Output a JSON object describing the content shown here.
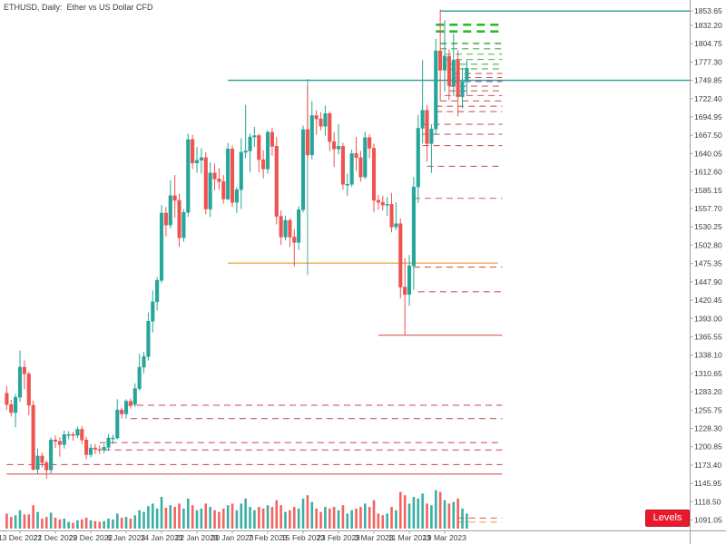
{
  "header": {
    "symbol_label": "ETHUSD, Daily:  Ether vs US Dollar CFD"
  },
  "levels_button": {
    "label": "Levels"
  },
  "colors": {
    "up": "#26a69a",
    "down": "#ef5350",
    "red_level": "#cd5c5c",
    "green_bold": "#2eb82e",
    "green_level": "#4caf50",
    "purple_level": "#a64ca6",
    "orange_level": "#efa94a",
    "teal_line": "#2a9d97",
    "axis_text": "#3c3c3c",
    "axis_line": "#a0a0a0",
    "button_red": "#e8192c"
  },
  "chart_data": {
    "type": "candlestick",
    "title": "ETHUSD, Daily: Ether vs US Dollar CFD",
    "xlabel": "",
    "ylabel": "",
    "price_axis": {
      "min": 1085,
      "max": 1862,
      "labels": [
        "1853.65",
        "1832.20",
        "1804.75",
        "1777.30",
        "1749.85",
        "1722.40",
        "1694.95",
        "1667.50",
        "1640.05",
        "1612.60",
        "1585.15",
        "1557.70",
        "1530.25",
        "1502.80",
        "1475.35",
        "1447.90",
        "1420.45",
        "1393.00",
        "1365.55",
        "1338.10",
        "1310.65",
        "1283.20",
        "1255.75",
        "1228.30",
        "1200.85",
        "1173.40",
        "1145.95",
        "1118.50",
        "1091.05"
      ]
    },
    "time_axis": {
      "start_date": "10 Dec 2022",
      "ticks": [
        {
          "label": "13 Dec 2022",
          "day": 3
        },
        {
          "label": "21 Dec 2022",
          "day": 11
        },
        {
          "label": "29 Dec 2022",
          "day": 19
        },
        {
          "label": "6 Jan 2023",
          "day": 27
        },
        {
          "label": "14 Jan 2023",
          "day": 35
        },
        {
          "label": "22 Jan 2023",
          "day": 43
        },
        {
          "label": "30 Jan 2023",
          "day": 51
        },
        {
          "label": "7 Feb 2023",
          "day": 59
        },
        {
          "label": "15 Feb 2023",
          "day": 67
        },
        {
          "label": "23 Feb 2023",
          "day": 75
        },
        {
          "label": "3 Mar 2023",
          "day": 83
        },
        {
          "label": "11 Mar 2023",
          "day": 91
        },
        {
          "label": "19 Mar 2023",
          "day": 99
        }
      ]
    },
    "candles": [
      [
        1281,
        1292,
        1256,
        1264
      ],
      [
        1264,
        1271,
        1246,
        1252
      ],
      [
        1252,
        1280,
        1230,
        1275
      ],
      [
        1275,
        1345,
        1268,
        1320
      ],
      [
        1320,
        1330,
        1287,
        1310
      ],
      [
        1310,
        1313,
        1248,
        1263
      ],
      [
        1263,
        1270,
        1165,
        1167
      ],
      [
        1167,
        1198,
        1160,
        1187
      ],
      [
        1187,
        1192,
        1170,
        1177
      ],
      [
        1177,
        1180,
        1153,
        1166
      ],
      [
        1166,
        1215,
        1161,
        1211
      ],
      [
        1211,
        1218,
        1199,
        1209
      ],
      [
        1209,
        1215,
        1186,
        1204
      ],
      [
        1204,
        1225,
        1198,
        1219
      ],
      [
        1219,
        1224,
        1212,
        1219
      ],
      [
        1219,
        1223,
        1210,
        1218
      ],
      [
        1218,
        1231,
        1214,
        1227
      ],
      [
        1227,
        1232,
        1205,
        1211
      ],
      [
        1211,
        1216,
        1182,
        1189
      ],
      [
        1189,
        1205,
        1185,
        1199
      ],
      [
        1199,
        1205,
        1190,
        1197
      ],
      [
        1197,
        1203,
        1190,
        1196
      ],
      [
        1196,
        1205,
        1191,
        1200
      ],
      [
        1200,
        1220,
        1195,
        1214
      ],
      [
        1214,
        1219,
        1205,
        1214
      ],
      [
        1214,
        1272,
        1212,
        1256
      ],
      [
        1256,
        1259,
        1243,
        1250
      ],
      [
        1250,
        1272,
        1243,
        1269
      ],
      [
        1269,
        1273,
        1258,
        1264
      ],
      [
        1264,
        1296,
        1260,
        1288
      ],
      [
        1288,
        1340,
        1285,
        1320
      ],
      [
        1320,
        1343,
        1311,
        1336
      ],
      [
        1336,
        1402,
        1330,
        1389
      ],
      [
        1389,
        1435,
        1372,
        1418
      ],
      [
        1418,
        1455,
        1405,
        1450
      ],
      [
        1450,
        1563,
        1446,
        1551
      ],
      [
        1551,
        1560,
        1516,
        1533
      ],
      [
        1533,
        1600,
        1528,
        1577
      ],
      [
        1577,
        1608,
        1544,
        1570
      ],
      [
        1570,
        1580,
        1500,
        1514
      ],
      [
        1514,
        1557,
        1508,
        1552
      ],
      [
        1552,
        1670,
        1545,
        1661
      ],
      [
        1661,
        1668,
        1617,
        1626
      ],
      [
        1626,
        1650,
        1611,
        1630
      ],
      [
        1630,
        1648,
        1610,
        1634
      ],
      [
        1634,
        1642,
        1549,
        1557
      ],
      [
        1557,
        1627,
        1545,
        1611
      ],
      [
        1611,
        1625,
        1585,
        1602
      ],
      [
        1602,
        1618,
        1586,
        1598
      ],
      [
        1598,
        1608,
        1565,
        1572
      ],
      [
        1572,
        1656,
        1570,
        1647
      ],
      [
        1647,
        1652,
        1560,
        1567
      ],
      [
        1567,
        1590,
        1551,
        1586
      ],
      [
        1586,
        1663,
        1557,
        1642
      ],
      [
        1642,
        1713,
        1633,
        1644
      ],
      [
        1644,
        1670,
        1612,
        1665
      ],
      [
        1665,
        1680,
        1650,
        1667
      ],
      [
        1667,
        1670,
        1612,
        1631
      ],
      [
        1631,
        1645,
        1603,
        1617
      ],
      [
        1617,
        1675,
        1610,
        1672
      ],
      [
        1672,
        1679,
        1637,
        1651
      ],
      [
        1651,
        1665,
        1534,
        1546
      ],
      [
        1546,
        1555,
        1503,
        1515
      ],
      [
        1515,
        1547,
        1510,
        1540
      ],
      [
        1540,
        1543,
        1500,
        1515
      ],
      [
        1515,
        1527,
        1471,
        1507
      ],
      [
        1507,
        1561,
        1496,
        1556
      ],
      [
        1556,
        1682,
        1552,
        1676
      ],
      [
        1676,
        1743,
        1633,
        1638
      ],
      [
        1638,
        1719,
        1631,
        1697
      ],
      [
        1697,
        1705,
        1668,
        1692
      ],
      [
        1692,
        1702,
        1675,
        1681
      ],
      [
        1681,
        1712,
        1667,
        1700
      ],
      [
        1700,
        1703,
        1644,
        1658
      ],
      [
        1658,
        1672,
        1620,
        1647
      ],
      [
        1647,
        1684,
        1639,
        1651
      ],
      [
        1651,
        1656,
        1586,
        1594
      ],
      [
        1594,
        1610,
        1577,
        1594
      ],
      [
        1594,
        1646,
        1590,
        1640
      ],
      [
        1640,
        1665,
        1614,
        1634
      ],
      [
        1634,
        1644,
        1598,
        1605
      ],
      [
        1605,
        1673,
        1602,
        1664
      ],
      [
        1664,
        1669,
        1633,
        1648
      ],
      [
        1648,
        1655,
        1552,
        1570
      ],
      [
        1570,
        1578,
        1556,
        1567
      ],
      [
        1567,
        1577,
        1555,
        1563
      ],
      [
        1563,
        1575,
        1547,
        1564
      ],
      [
        1564,
        1581,
        1522,
        1530
      ],
      [
        1530,
        1567,
        1525,
        1535
      ],
      [
        1535,
        1543,
        1423,
        1440
      ],
      [
        1440,
        1483,
        1368,
        1429
      ],
      [
        1429,
        1488,
        1412,
        1472
      ],
      [
        1472,
        1605,
        1436,
        1590
      ],
      [
        1590,
        1698,
        1566,
        1678
      ],
      [
        1678,
        1780,
        1655,
        1705
      ],
      [
        1705,
        1713,
        1628,
        1655
      ],
      [
        1655,
        1684,
        1611,
        1677
      ],
      [
        1677,
        1812,
        1668,
        1794
      ],
      [
        1794,
        1856,
        1719,
        1765
      ],
      [
        1765,
        1840,
        1733,
        1786
      ],
      [
        1786,
        1796,
        1720,
        1742
      ],
      [
        1742,
        1820,
        1726,
        1780
      ],
      [
        1780,
        1795,
        1696,
        1725
      ],
      [
        1725,
        1768,
        1708,
        1748
      ],
      [
        1748,
        1780,
        1728,
        1768
      ]
    ],
    "volume": [
      18,
      14,
      16,
      22,
      17,
      17,
      28,
      20,
      12,
      14,
      19,
      13,
      11,
      12,
      8,
      7,
      10,
      11,
      13,
      10,
      9,
      8,
      9,
      12,
      11,
      18,
      13,
      14,
      12,
      16,
      22,
      20,
      27,
      30,
      24,
      38,
      25,
      28,
      26,
      30,
      24,
      36,
      28,
      22,
      24,
      30,
      26,
      22,
      20,
      24,
      28,
      30,
      22,
      30,
      36,
      26,
      22,
      26,
      24,
      28,
      26,
      34,
      28,
      20,
      22,
      26,
      24,
      36,
      40,
      32,
      24,
      20,
      26,
      24,
      26,
      22,
      28,
      18,
      22,
      24,
      26,
      30,
      26,
      34,
      18,
      16,
      18,
      26,
      22,
      44,
      40,
      30,
      38,
      36,
      42,
      30,
      28,
      46,
      44,
      34,
      30,
      32,
      36,
      24,
      18
    ],
    "levels": [
      {
        "p": 1833,
        "d0": 97,
        "d1": 112,
        "c": "green_bold",
        "s": "dash",
        "w": 2.6
      },
      {
        "p": 1823,
        "d0": 97,
        "d1": 112,
        "c": "green_bold",
        "s": "dash",
        "w": 2.6
      },
      {
        "p": 1805,
        "d0": 98,
        "d1": 112,
        "c": "green_level",
        "s": "dash",
        "w": 1.6
      },
      {
        "p": 1797,
        "d0": 98,
        "d1": 112,
        "c": "green_level",
        "s": "dash",
        "w": 1.1
      },
      {
        "p": 1789,
        "d0": 99,
        "d1": 112,
        "c": "green_level",
        "s": "dash",
        "w": 1.1
      },
      {
        "p": 1781,
        "d0": 99,
        "d1": 112,
        "c": "green_level",
        "s": "dash",
        "w": 1.1
      },
      {
        "p": 1774,
        "d0": 100,
        "d1": 112,
        "c": "green_level",
        "s": "dash",
        "w": 1.1
      },
      {
        "p": 1767,
        "d0": 100,
        "d1": 112,
        "c": "green_level",
        "s": "dash",
        "w": 1.1
      },
      {
        "p": 1760,
        "d0": 101,
        "d1": 112,
        "c": "red_level",
        "s": "dash",
        "w": 1.1
      },
      {
        "p": 1754,
        "d0": 101,
        "d1": 112,
        "c": "red_level",
        "s": "dash",
        "w": 1.1
      },
      {
        "p": 1748,
        "d0": 101,
        "d1": 112,
        "c": "purple_level",
        "s": "dash",
        "w": 1.1
      },
      {
        "p": 1741,
        "d0": 100,
        "d1": 112,
        "c": "red_level",
        "s": "dash",
        "w": 1.1
      },
      {
        "p": 1734,
        "d0": 100,
        "d1": 112,
        "c": "red_level",
        "s": "dash",
        "w": 1.1
      },
      {
        "p": 1727,
        "d0": 99,
        "d1": 112,
        "c": "red_level",
        "s": "dash",
        "w": 1.1
      },
      {
        "p": 1719,
        "d0": 98,
        "d1": 112,
        "c": "red_level",
        "s": "dash",
        "w": 1.1
      },
      {
        "p": 1711,
        "d0": 97,
        "d1": 112,
        "c": "red_level",
        "s": "dash",
        "w": 1.1
      },
      {
        "p": 1703,
        "d0": 97,
        "d1": 112,
        "c": "red_level",
        "s": "dash",
        "w": 1.1
      },
      {
        "p": 1684,
        "d0": 94,
        "d1": 112,
        "c": "red_level",
        "s": "dash",
        "w": 1.1
      },
      {
        "p": 1669,
        "d0": 94,
        "d1": 112,
        "c": "red_level",
        "s": "dash",
        "w": 1.1
      },
      {
        "p": 1652,
        "d0": 94,
        "d1": 112,
        "c": "red_level",
        "s": "dash",
        "w": 1.1
      },
      {
        "p": 1621,
        "d0": 95,
        "d1": 112,
        "c": "red_level",
        "s": "dash",
        "w": 1.1
      },
      {
        "p": 1573,
        "d0": 92,
        "d1": 112,
        "c": "red_level",
        "s": "dash",
        "w": 1.1
      },
      {
        "p": 1470,
        "d0": 92,
        "d1": 112,
        "c": "red_level",
        "s": "dash",
        "w": 1.1
      },
      {
        "p": 1433,
        "d0": 93,
        "d1": 112,
        "c": "red_level",
        "s": "dash",
        "w": 1.1
      },
      {
        "p": 1368,
        "d0": 84,
        "d1": 112,
        "c": "red_level",
        "s": "solid",
        "w": 1.2
      },
      {
        "p": 1263,
        "d0": 27,
        "d1": 112,
        "c": "red_level",
        "s": "dash",
        "w": 1.1
      },
      {
        "p": 1243,
        "d0": 28,
        "d1": 112,
        "c": "red_level",
        "s": "dash",
        "w": 1.1
      },
      {
        "p": 1207,
        "d0": 21,
        "d1": 112,
        "c": "red_level",
        "s": "dash",
        "w": 1.1
      },
      {
        "p": 1196,
        "d0": 22,
        "d1": 112,
        "c": "red_level",
        "s": "dash",
        "w": 1.1
      },
      {
        "p": 1174,
        "d0": 0,
        "d1": 112,
        "c": "red_level",
        "s": "dash",
        "w": 1.1
      },
      {
        "p": 1160,
        "d0": 0,
        "d1": 112,
        "c": "red_level",
        "s": "solid",
        "w": 1.2
      },
      {
        "p": 1094,
        "d0": 102,
        "d1": 112,
        "c": "red_level",
        "s": "dash",
        "w": 1.1
      },
      {
        "p": 1088,
        "d0": 102,
        "d1": 112,
        "c": "orange_level",
        "s": "dash",
        "w": 1.1
      },
      {
        "p": 1476,
        "d0": 50,
        "d1": 111,
        "c": "orange_level",
        "s": "solid",
        "w": 1.4
      },
      {
        "p": 1749.85,
        "d0": 50,
        "d1": 160,
        "c": "teal_line",
        "s": "solid",
        "w": 1.4
      },
      {
        "p": 1853.65,
        "d0": 98,
        "d1": 160,
        "c": "teal_line",
        "s": "solid",
        "w": 1.4
      }
    ],
    "vline": {
      "d": 68,
      "p0": 1752,
      "p1": 1458,
      "c": "teal_line",
      "w": 1
    }
  }
}
